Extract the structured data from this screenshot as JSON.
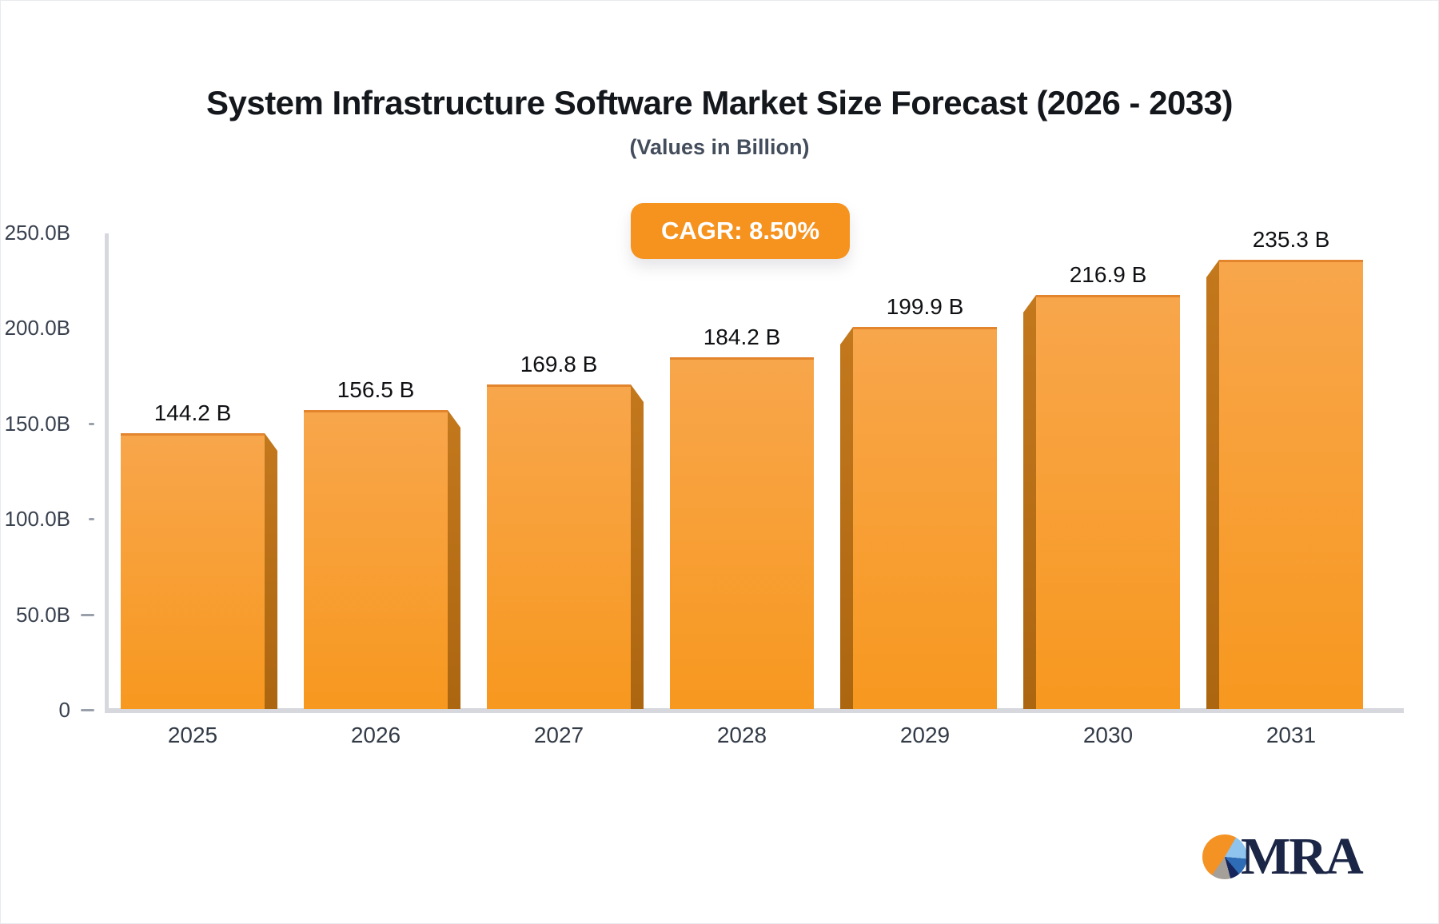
{
  "title": "System Infrastructure Software Market Size Forecast (2026 - 2033)",
  "subtitle": "(Values in Billion)",
  "badge": {
    "label": "CAGR: 8.50%"
  },
  "chart_data": {
    "type": "bar",
    "title": "System Infrastructure Software Market Size Forecast (2026 - 2033)",
    "subtitle": "(Values in Billion)",
    "cagr_annotation": "CAGR: 8.50%",
    "categories": [
      "2025",
      "2026",
      "2027",
      "2028",
      "2029",
      "2030",
      "2031"
    ],
    "values": [
      144.2,
      156.5,
      169.8,
      184.2,
      199.9,
      216.9,
      235.3
    ],
    "bar_labels": [
      "144.2 B",
      "156.5 B",
      "169.8 B",
      "184.2 B",
      "199.9 B",
      "216.9 B",
      "235.3 B"
    ],
    "y_ticks": [
      {
        "label": "250.0B",
        "value": 250,
        "tick": "none"
      },
      {
        "label": "200.0B",
        "value": 200,
        "tick": "none"
      },
      {
        "label": "150.0B",
        "value": 150,
        "tick": "small"
      },
      {
        "label": "100.0B",
        "value": 100,
        "tick": "small"
      },
      {
        "label": "50.0B",
        "value": 50,
        "tick": "large"
      },
      {
        "label": "0",
        "value": 0,
        "tick": "large"
      }
    ],
    "xlabel": "",
    "ylabel": "",
    "ylim": [
      0,
      250
    ],
    "grid": false,
    "legend": "none",
    "bar_style": "3d-orange"
  },
  "logo": {
    "text": "MRA"
  },
  "colors": {
    "title_color": "#14171c",
    "subtitle_color": "#444d5c",
    "badge_bg": "#f6921e",
    "badge_text": "#ffffff",
    "axis_color": "#d7d8dd",
    "tick_label_color": "#39414f",
    "value_label_color": "#101114",
    "bar_face_top": "#f8a64c",
    "bar_face_bottom": "#f7981f",
    "bar_side": "#b96f16",
    "bar_top_edge": "#e2852d",
    "logo_navy": "#1b2545",
    "pie_orange": "#f49223",
    "pie_lightblue": "#8ec4ed",
    "pie_blue": "#2e6cb5",
    "pie_navy": "#16265c",
    "pie_gray": "#a59f99"
  }
}
